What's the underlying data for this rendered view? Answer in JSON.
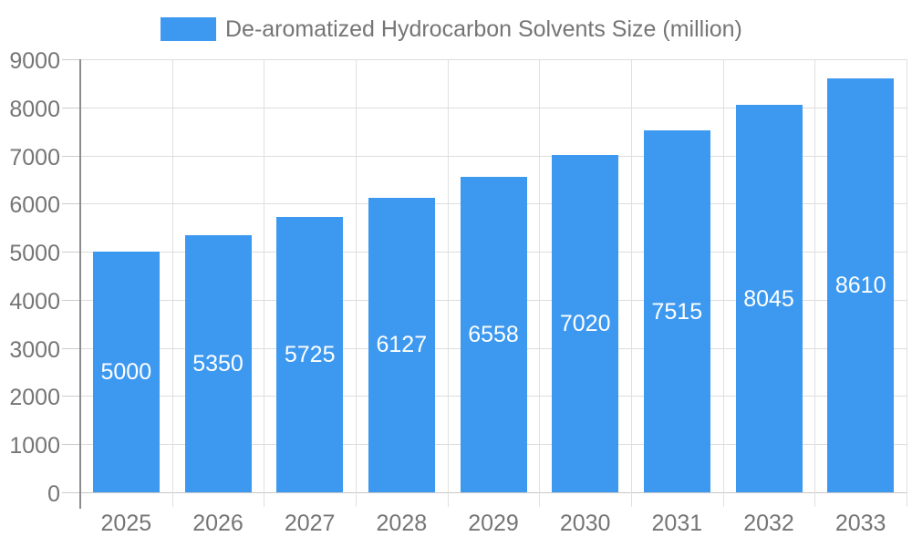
{
  "colors": {
    "bar": "#3D99F0",
    "bar_label_text": "#FFFFFF",
    "axis_text": "#757575",
    "gridline": "#DDDDDD",
    "baseline": "#C8C8C8",
    "axis_line": "#8C8C8C"
  },
  "chart_data": {
    "type": "bar",
    "title": "De-aromatized Hydrocarbon Solvents Size (million)",
    "categories": [
      "2025",
      "2026",
      "2027",
      "2028",
      "2029",
      "2030",
      "2031",
      "2032",
      "2033"
    ],
    "values": [
      5000,
      5350,
      5725,
      6127,
      6558,
      7020,
      7515,
      8045,
      8610
    ],
    "xlabel": "",
    "ylabel": "",
    "ylim": [
      0,
      9000
    ],
    "ytick_step": 1000,
    "yticks": [
      0,
      1000,
      2000,
      3000,
      4000,
      5000,
      6000,
      7000,
      8000,
      9000
    ],
    "grid": "both",
    "legend_position": "top",
    "value_labels": "inside-center"
  }
}
